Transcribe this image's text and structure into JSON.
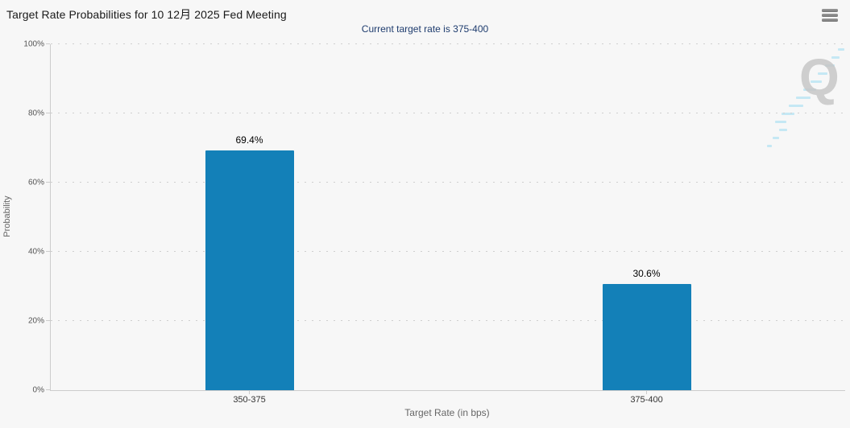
{
  "watermark": {
    "letter": "Q"
  },
  "colors": {
    "background": "#f7f7f7",
    "bar": "#1380b8",
    "subtitle_text": "#1e3c6e",
    "axis_line": "#cccccc",
    "gridline": "#cfcfcf"
  },
  "chart_data": {
    "type": "bar",
    "title": "Target Rate Probabilities for 10 12月 2025 Fed Meeting",
    "subtitle": "Current target rate is 375-400",
    "categories": [
      "350-375",
      "375-400"
    ],
    "values": [
      69.4,
      30.6
    ],
    "value_labels": [
      "69.4%",
      "30.6%"
    ],
    "xlabel": "Target Rate (in bps)",
    "ylabel": "Probability",
    "ylim": [
      0,
      100
    ],
    "ytick_values": [
      0,
      20,
      40,
      60,
      80,
      100
    ],
    "ytick_labels": [
      "0%",
      "20%",
      "40%",
      "60%",
      "80%",
      "100%"
    ],
    "grid": "horizontal-dotted",
    "legend": "none",
    "bar_color": "#1380b8"
  }
}
